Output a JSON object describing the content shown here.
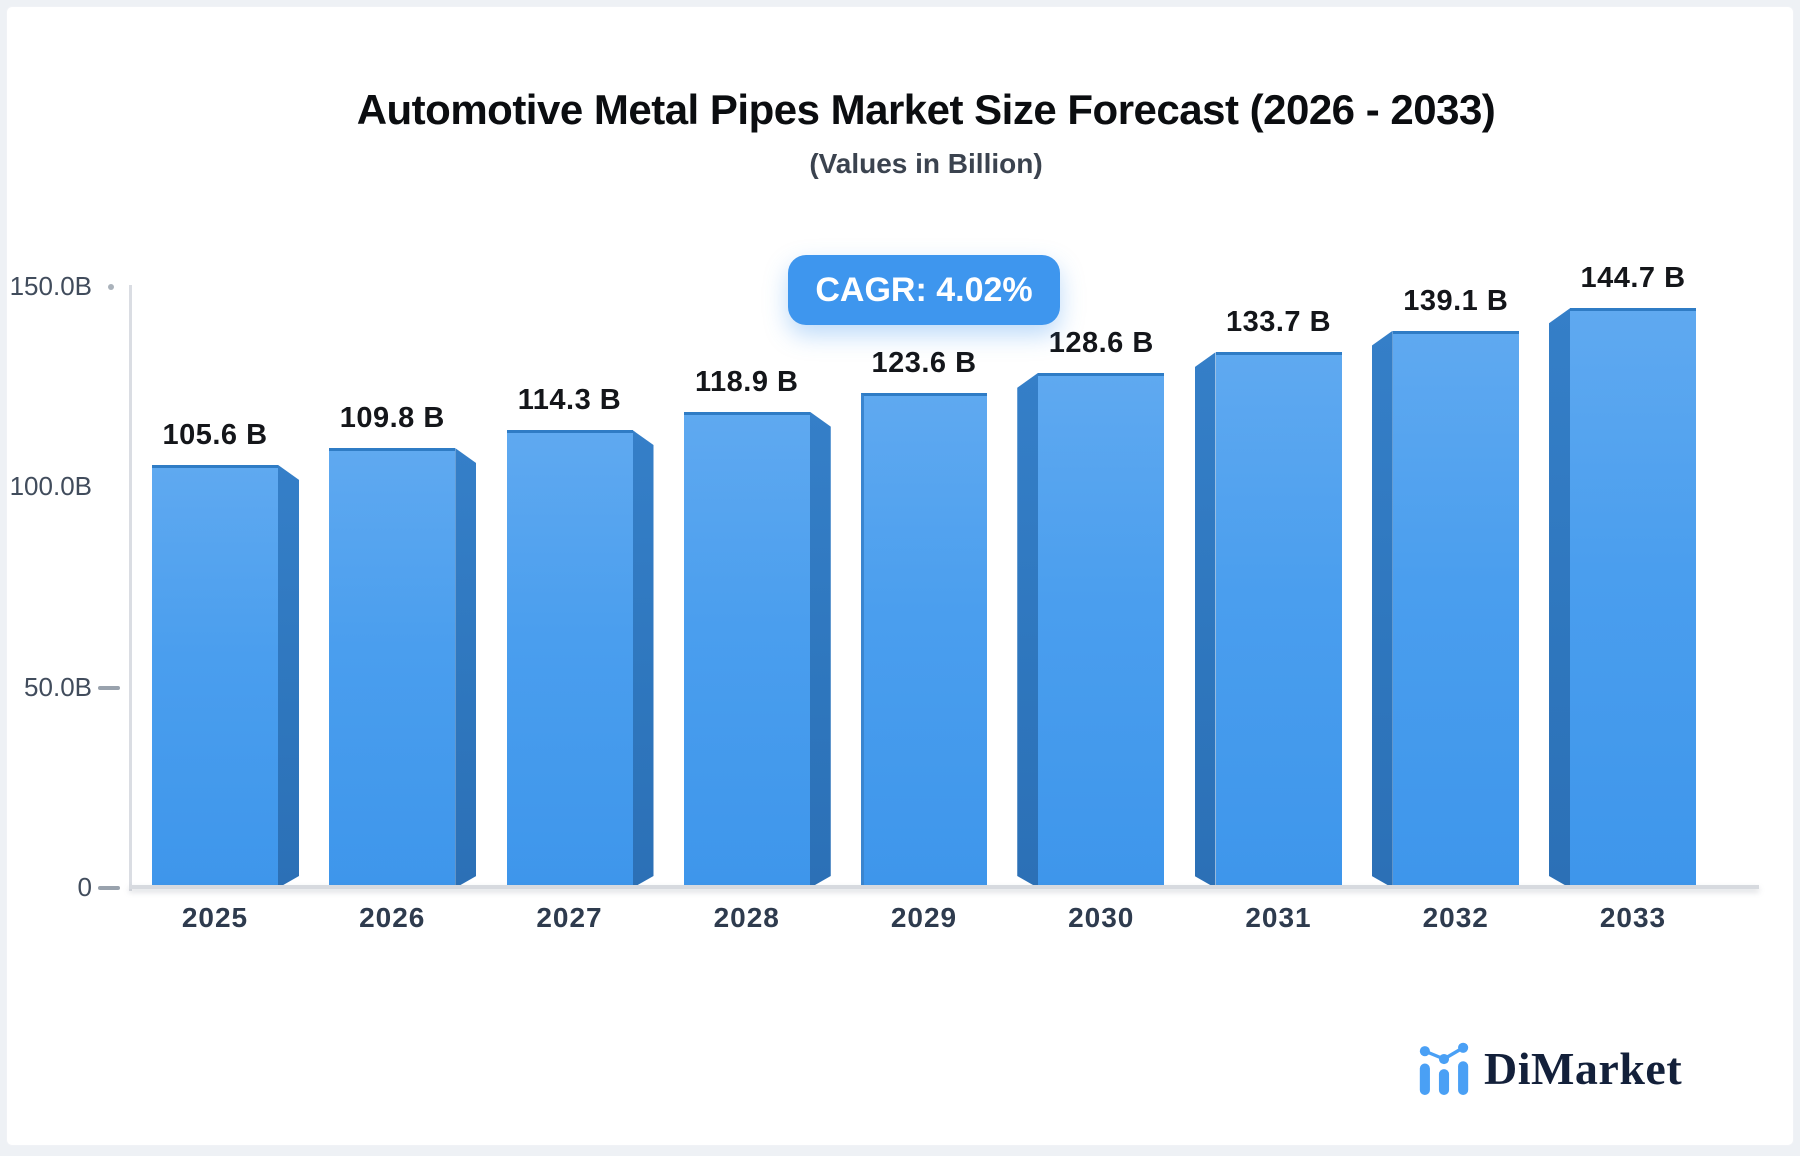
{
  "page": {
    "background": "#eef1f5",
    "card_background": "#ffffff"
  },
  "header": {
    "title": "Automotive Metal Pipes Market Size Forecast (2026 - 2033)",
    "subtitle": "(Values in Billion)"
  },
  "badge": {
    "label": "CAGR: 4.02%",
    "background": "#3E96EE",
    "text_color": "#ffffff"
  },
  "chart_data": {
    "type": "bar",
    "title": "Automotive Metal Pipes Market Size Forecast (2026 - 2033)",
    "subtitle": "(Values in Billion)",
    "categories": [
      "2025",
      "2026",
      "2027",
      "2028",
      "2029",
      "2030",
      "2031",
      "2032",
      "2033"
    ],
    "values": [
      105.6,
      109.8,
      114.3,
      118.9,
      123.6,
      128.6,
      133.7,
      139.1,
      144.7
    ],
    "value_labels": [
      "105.6 B",
      "109.8 B",
      "114.3 B",
      "118.9 B",
      "123.6 B",
      "128.6 B",
      "133.7 B",
      "139.1 B",
      "144.7 B"
    ],
    "unit": "Billion",
    "xlabel": "",
    "ylabel": "",
    "ylim": [
      0,
      150
    ],
    "yticks": [
      {
        "label": "150.0B",
        "value": 150,
        "mark": "dot"
      },
      {
        "label": "100.0B",
        "value": 100,
        "mark": "none"
      },
      {
        "label": "50.0B",
        "value": 50,
        "mark": "dash"
      },
      {
        "label": "0",
        "value": 0,
        "mark": "dash"
      }
    ],
    "grid": false,
    "legend": "none",
    "bar_style": "pseudo-3d",
    "colors": {
      "bar_face_top": "#5FA9F0",
      "bar_face_bottom": "#3E96EB",
      "bar_side": "#2E76BD",
      "bar_edge": "#2F7CC5",
      "axis": "#D7DADF"
    }
  },
  "logo": {
    "text": "DiMarket",
    "icon": "mini-bar-chart-icon",
    "text_color": "#13203a",
    "icon_color": "#4AA0F5"
  }
}
